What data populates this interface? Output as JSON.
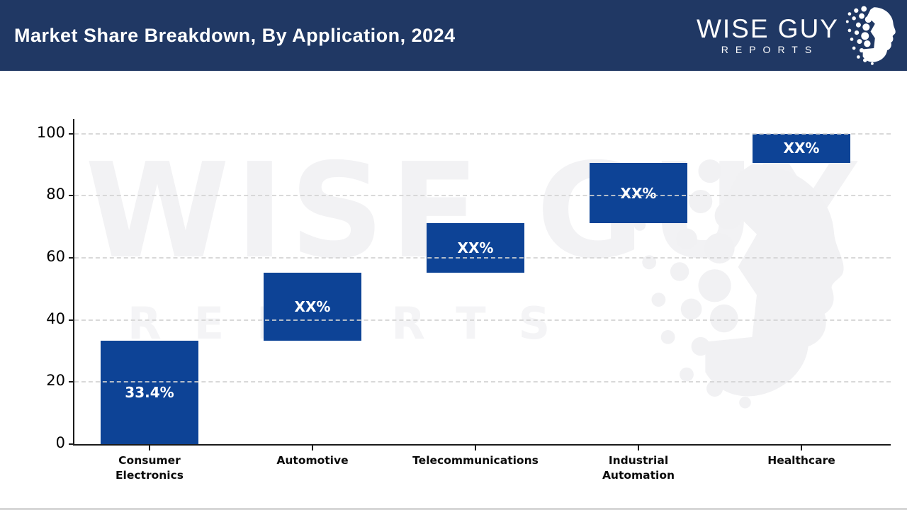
{
  "header": {
    "title": "Market Share Breakdown, By Application, 2024",
    "logo": {
      "line1": "WISE GUY",
      "line2": "REPORTS",
      "icon": "dotted-face-profile"
    }
  },
  "watermark": {
    "line1": "WISE GUY",
    "line2": "REPORTS"
  },
  "colors": {
    "header_bg": "#203864",
    "bar_fill": "#0d4396",
    "grid": "#d2d2d2",
    "axis": "#1a1a1a",
    "watermark": "#f2f2f4",
    "bar_label_text": "#ffffff"
  },
  "chart_data": {
    "type": "bar",
    "subtype": "waterfall",
    "title": "Market Share Breakdown, By Application, 2024",
    "xlabel": "",
    "ylabel": "",
    "ylim": [
      0,
      100
    ],
    "yticks": [
      0,
      20,
      40,
      60,
      80,
      100
    ],
    "grid": "horizontal-dashed",
    "legend": "none",
    "categories": [
      "Consumer\nElectronics",
      "Automotive",
      "Telecommunications",
      "Industrial\nAutomation",
      "Healthcare"
    ],
    "segments": [
      {
        "category": "Consumer Electronics",
        "start": 0,
        "end": 33.4,
        "label": "33.4%"
      },
      {
        "category": "Automotive",
        "start": 33.4,
        "end": 55.2,
        "label": "XX%"
      },
      {
        "category": "Telecommunications",
        "start": 55.2,
        "end": 71.1,
        "label": "XX%"
      },
      {
        "category": "Industrial Automation",
        "start": 71.1,
        "end": 90.6,
        "label": "XX%"
      },
      {
        "category": "Healthcare",
        "start": 90.6,
        "end": 100,
        "label": "XX%"
      }
    ]
  }
}
